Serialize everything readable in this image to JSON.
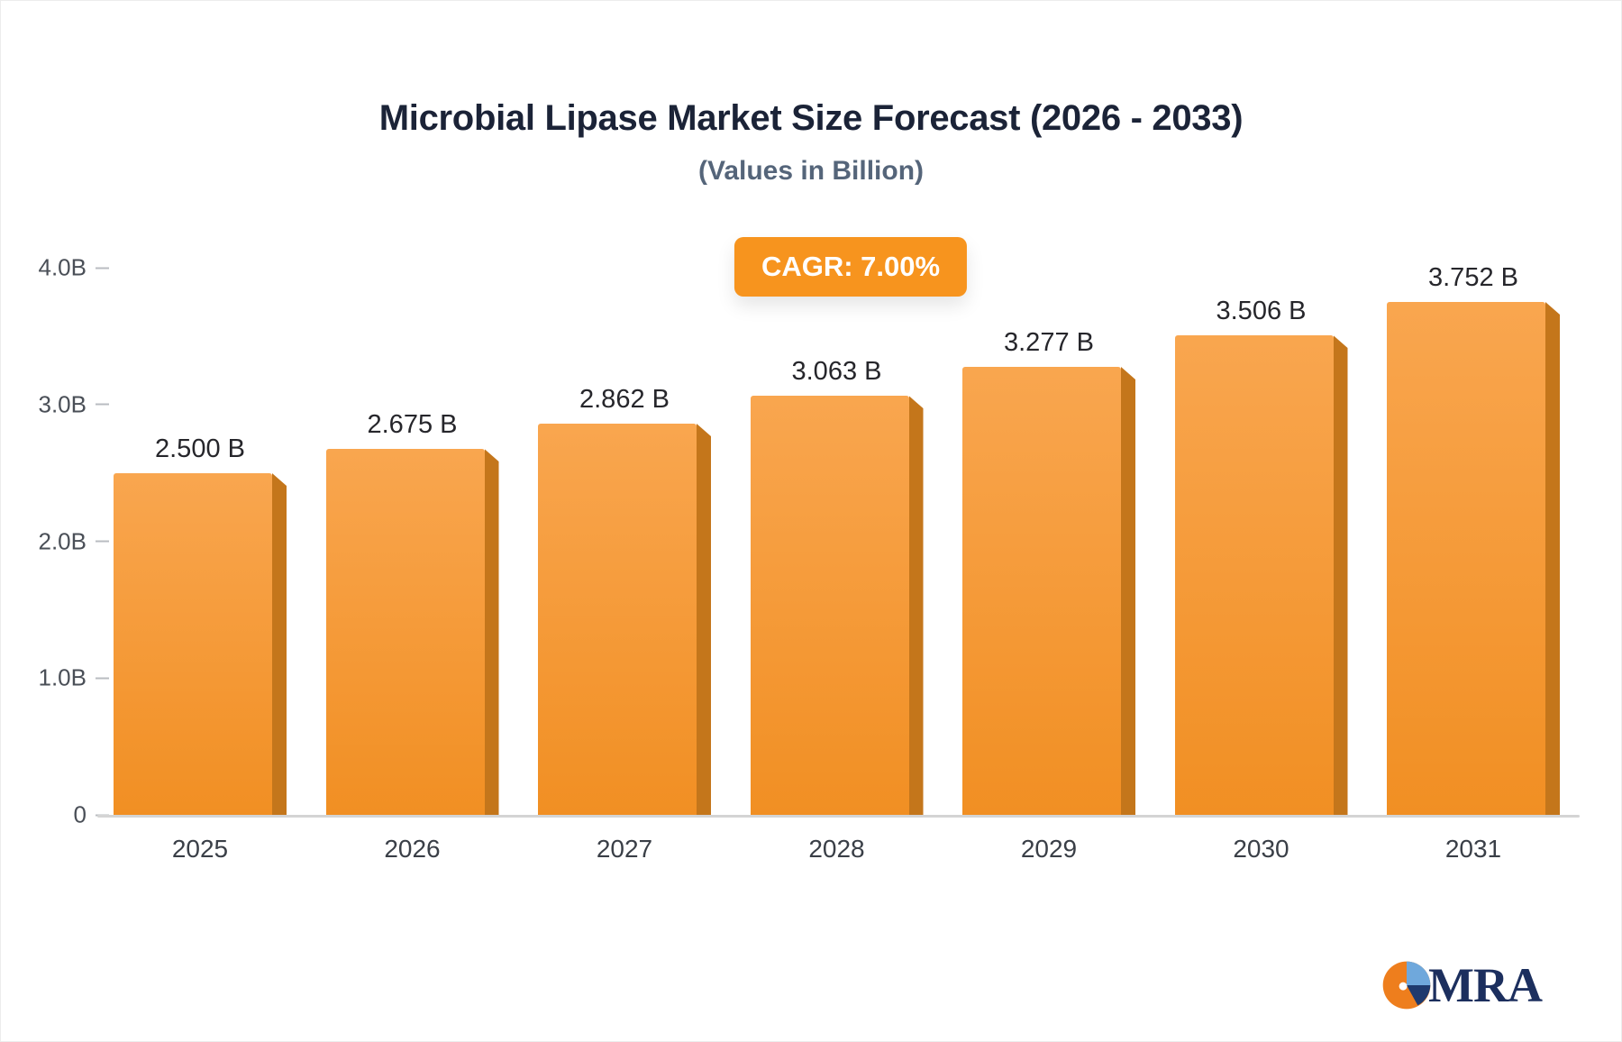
{
  "header": {
    "title": "Microbial Lipase Market Size Forecast (2026 - 2033)",
    "subtitle": "(Values in Billion)"
  },
  "badge": {
    "label": "CAGR: 7.00%",
    "color": "#F7941E"
  },
  "chart_data": {
    "type": "bar",
    "title": "Microbial Lipase Market Size Forecast (2026 - 2033)",
    "subtitle": "(Values in Billion)",
    "categories": [
      "2025",
      "2026",
      "2027",
      "2028",
      "2029",
      "2030",
      "2031"
    ],
    "values": [
      2.5,
      2.675,
      2.862,
      3.063,
      3.277,
      3.506,
      3.752
    ],
    "bar_labels": [
      "2.500 B",
      "2.675 B",
      "2.862 B",
      "3.063 B",
      "3.277 B",
      "3.506 B",
      "3.752 B"
    ],
    "xlabel": "",
    "ylabel": "",
    "ylim": [
      0,
      4
    ],
    "yticks": [
      {
        "value": 4,
        "label": "4.0B"
      },
      {
        "value": 3,
        "label": "3.0B"
      },
      {
        "value": 2,
        "label": "2.0B"
      },
      {
        "value": 1,
        "label": "1.0B"
      },
      {
        "value": 0,
        "label": "0"
      }
    ],
    "grid": "off",
    "legend": "none",
    "bar_color_top": "#F9A64F",
    "bar_color_bottom": "#F18F23",
    "bar_side_color": "#C4761B",
    "cagr": "CAGR: 7.00%"
  },
  "logo": {
    "text": "MRA",
    "icon": "pie-circle-icon",
    "colors": {
      "orange": "#EE7E1D",
      "blue": "#6FA8DC",
      "navy": "#1F3A6E"
    }
  }
}
